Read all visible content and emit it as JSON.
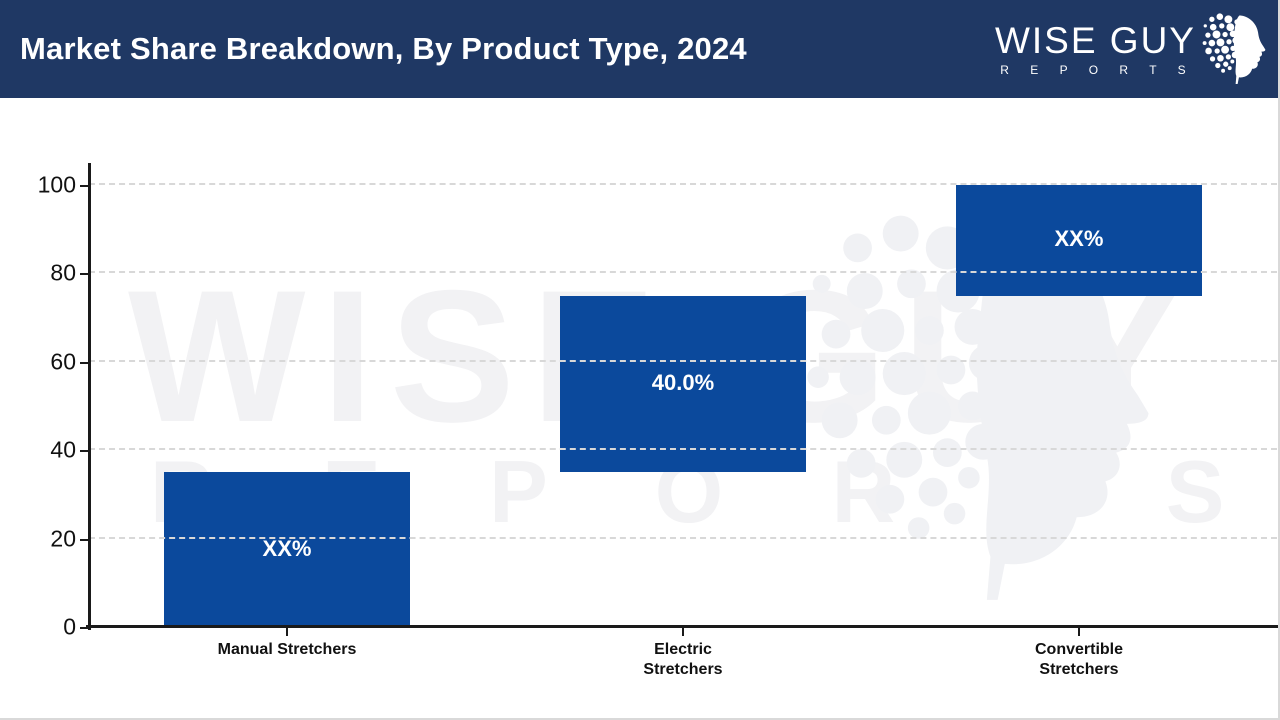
{
  "header": {
    "title": "Market Share Breakdown, By Product Type, 2024",
    "logo": {
      "line1": "WISE GUY",
      "line2": "R E P O R T S"
    },
    "bg_color": "#1f3864"
  },
  "watermark": {
    "line1": "WISE GUY",
    "line2": "R E P O R T S"
  },
  "chart_data": {
    "type": "bar",
    "subtype": "floating-waterfall-segments",
    "title": "Market Share Breakdown, By Product Type, 2024",
    "categories": [
      "Manual Stretchers",
      "Electric\nStretchers",
      "Convertible\nStretchers"
    ],
    "bars": [
      {
        "category": "Manual Stretchers",
        "start": 0,
        "end": 35,
        "label": "XX%"
      },
      {
        "category": "Electric Stretchers",
        "start": 35,
        "end": 75,
        "label": "40.0%"
      },
      {
        "category": "Convertible Stretchers",
        "start": 75,
        "end": 100,
        "label": "XX%"
      }
    ],
    "yticks": [
      0,
      20,
      40,
      60,
      80,
      100
    ],
    "ylim": [
      0,
      105
    ],
    "xlabel": "",
    "ylabel": "",
    "bar_color": "#0b499c",
    "grid": "horizontal-dashed",
    "grid_above_bars": true,
    "legend": "none"
  }
}
